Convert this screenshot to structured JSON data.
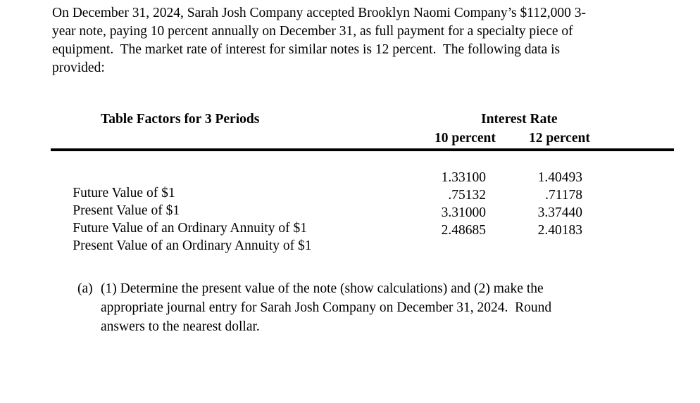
{
  "colors": {
    "text": "#000000",
    "background": "#ffffff"
  },
  "intro": {
    "lines": [
      "On December 31, 2024, Sarah Josh Company accepted Brooklyn Naomi Company’s $112,000 3-",
      "year note, paying 10 percent annually on December 31, as full payment for a specialty piece of",
      "equipment.  The market rate of interest for similar notes is 12 percent.  The following data is",
      "provided:"
    ]
  },
  "table": {
    "title": "Table Factors for 3 Periods",
    "group_header": "Interest Rate",
    "col_headers": [
      "10 percent",
      "12 percent"
    ],
    "rows": [
      {
        "label": "Future Value of $1",
        "pct10": "1.33100",
        "pct12": "1.40493"
      },
      {
        "label": "Present Value of $1",
        "pct10": ".75132",
        "pct12": ".71178"
      },
      {
        "label": "Future Value of an Ordinary Annuity of $1",
        "pct10": "3.31000",
        "pct12": "3.37440"
      },
      {
        "label": "Present Value of an Ordinary Annuity of $1",
        "pct10": "2.48685",
        "pct12": "2.40183"
      }
    ]
  },
  "question": {
    "marker": "(a)",
    "lines": [
      "(1) Determine the present value of the note (show calculations) and (2) make the",
      "appropriate journal entry for Sarah Josh Company on December 31, 2024.  Round",
      "answers to the nearest dollar."
    ]
  }
}
